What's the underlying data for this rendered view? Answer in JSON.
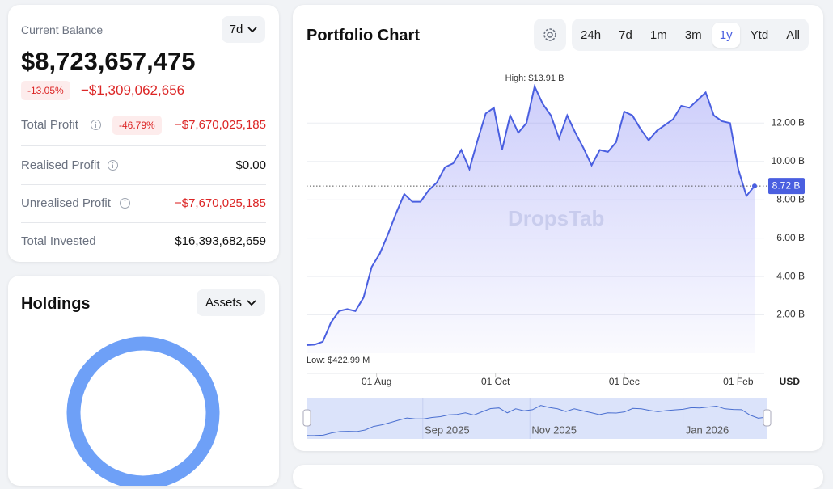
{
  "balance_card": {
    "title": "Current Balance",
    "period": "7d",
    "balance": "$8,723,657,475",
    "change_pct": "-13.05%",
    "change": "−$1,309,062,656",
    "rows": [
      {
        "label": "Total Profit",
        "pct": "-46.79%",
        "value": "−$7,670,025,185"
      },
      {
        "label": "Realised Profit",
        "value": "$0.00"
      },
      {
        "label": "Unrealised Profit",
        "value": "−$7,670,025,185"
      },
      {
        "label": "Total Invested",
        "value": "$16,393,682,659"
      }
    ]
  },
  "holdings": {
    "title": "Holdings",
    "filter": "Assets"
  },
  "portfolio": {
    "title": "Portfolio Chart",
    "ranges": [
      "24h",
      "7d",
      "1m",
      "3m",
      "1y",
      "Ytd",
      "All"
    ],
    "active_range": "1y",
    "chart": {
      "type": "area",
      "color": "#4a5fe0",
      "values": [
        0.42299,
        0.45,
        0.6,
        1.6,
        2.2,
        2.3,
        2.2,
        2.9,
        4.5,
        5.2,
        6.2,
        7.3,
        8.3,
        7.9,
        7.9,
        8.5,
        8.9,
        9.7,
        9.9,
        10.6,
        9.6,
        11.1,
        12.5,
        12.8,
        10.6,
        12.4,
        11.5,
        12.0,
        13.91,
        13.0,
        12.4,
        11.2,
        12.4,
        11.5,
        10.7,
        9.8,
        10.6,
        10.5,
        11.0,
        12.6,
        12.4,
        11.7,
        11.1,
        11.6,
        11.9,
        12.2,
        12.9,
        12.8,
        13.2,
        13.6,
        12.4,
        12.1,
        12.0,
        9.6,
        8.2,
        8.72
      ],
      "xlim": [
        0,
        55
      ],
      "xticks": [
        {
          "value": 8.6,
          "label": "01 Aug"
        },
        {
          "value": 23.2,
          "label": "01 Oct"
        },
        {
          "value": 39,
          "label": "01 Dec"
        },
        {
          "value": 53,
          "label": "01 Feb"
        }
      ],
      "ylim": [
        0,
        14.5
      ],
      "yticks": [
        {
          "value": 2,
          "label": "2.00 B"
        },
        {
          "value": 4,
          "label": "4.00 B"
        },
        {
          "value": 6,
          "label": "6.00 B"
        },
        {
          "value": 8,
          "label": "8.00 B"
        },
        {
          "value": 10,
          "label": "10.00 B"
        },
        {
          "value": 12,
          "label": "12.00 B"
        }
      ],
      "grid": true,
      "high_label": "High: $13.91 B",
      "low_label": "Low: $422.99 M",
      "last_label": "8.72 B",
      "currency": "USD",
      "watermark": "DropsTab",
      "navigator_ticks": [
        {
          "value": 16.8,
          "label": "Sep 2025"
        },
        {
          "value": 29.6,
          "label": "Nov 2025"
        },
        {
          "value": 47.9,
          "label": "Jan 2026"
        }
      ]
    }
  }
}
